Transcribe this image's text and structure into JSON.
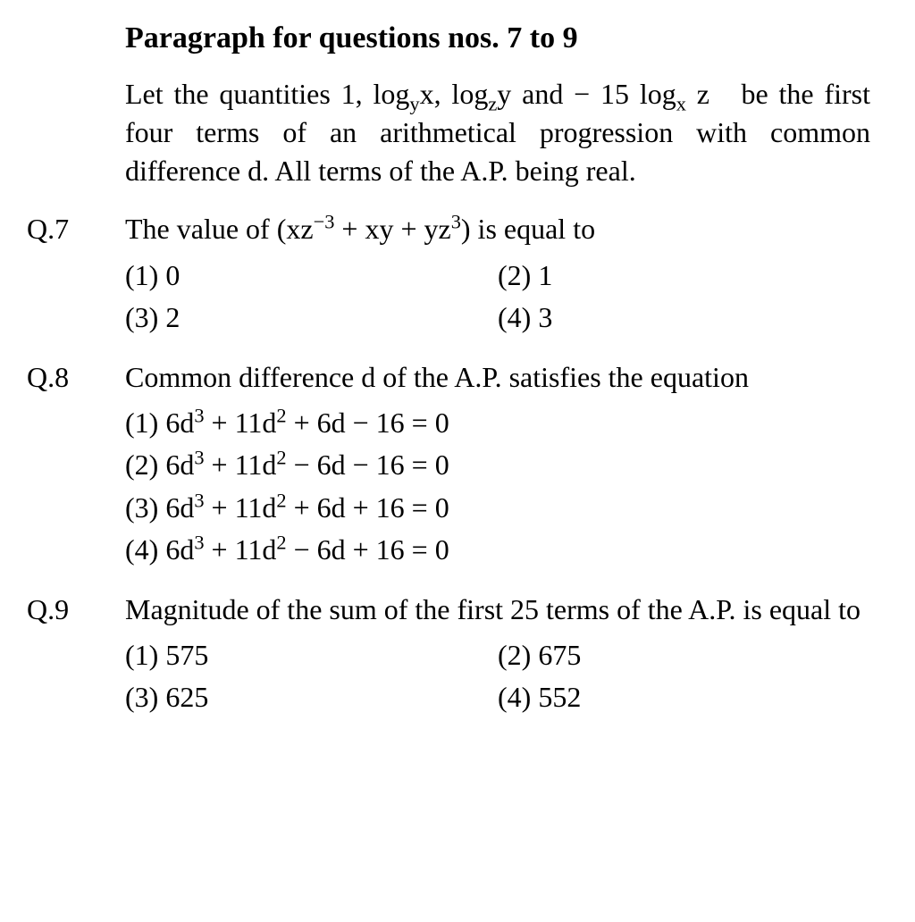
{
  "heading": "Paragraph for questions nos. 7 to 9",
  "paragraph_html": "Let the quantities 1, log<sub>y</sub>x, log<sub>z</sub>y and &minus; 15 log<sub>x</sub> z&nbsp;&nbsp;&nbsp;be the first four terms of an arithmetical progression with common difference d. All terms of the  A.P.  being real.",
  "q7": {
    "num": "Q.7",
    "text_html": "The value of  (xz<sup>&minus;3</sup> + xy + yz<sup>3</sup>)  is equal to",
    "opts": [
      "(1)  0",
      "(2)  1",
      "(3)  2",
      "(4)  3"
    ]
  },
  "q8": {
    "num": "Q.8",
    "text_html": "Common difference  d  of  the A.P.  satisfies the equation",
    "opts_html": [
      "(1)  6d<sup>3</sup> + 11d<sup>2</sup> + 6d &minus; 16 = 0",
      "(2)  6d<sup>3</sup> + 11d<sup>2</sup> &minus; 6d &minus; 16 = 0",
      "(3)  6d<sup>3</sup> + 11d<sup>2</sup> + 6d + 16 = 0",
      "(4)  6d<sup>3</sup> + 11d<sup>2</sup> &minus; 6d + 16 = 0"
    ]
  },
  "q9": {
    "num": "Q.9",
    "text_html": "Magnitude of the sum of the first  25 terms of the A.P.  is equal to",
    "opts": [
      "(1)  575",
      "(2)  675",
      "(3)  625",
      "(4)  552"
    ]
  }
}
